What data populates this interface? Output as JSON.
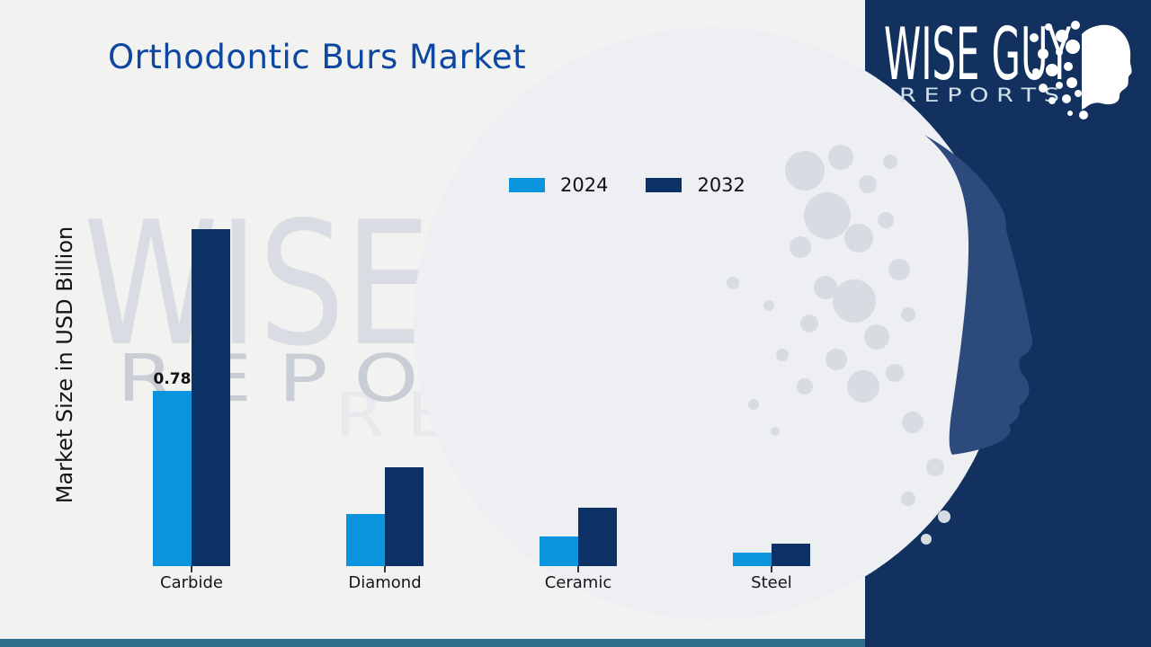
{
  "page": {
    "background": "#f2f2f1",
    "bottom_bar_color": "#2e6d8c"
  },
  "header": {
    "title": "Orthodontic Burs Market",
    "title_color": "#0d47a1"
  },
  "brand": {
    "name": "WISE GUY",
    "reports": "R E P O R T S",
    "panel_color": "#12315f",
    "face_silhouette_color": "#2d4a7c",
    "logo_text_color": "#ffffff",
    "reports_text_color": "#cfe0ea"
  },
  "watermark": {
    "line1": "WISE GUY",
    "line2": "R E P O R T S",
    "line2_faint": "R E P O R T S",
    "color": "#d9dce2"
  },
  "chart_data": {
    "type": "bar",
    "title": "Orthodontic Burs Market",
    "xlabel": "",
    "ylabel": "Market Size in USD Billion",
    "categories": [
      "Carbide",
      "Diamond",
      "Ceramic",
      "Steel"
    ],
    "series": [
      {
        "name": "2024",
        "color": "#0a94dd",
        "values": [
          0.78,
          0.23,
          0.13,
          0.06
        ]
      },
      {
        "name": "2032",
        "color": "#0e3165",
        "values": [
          1.5,
          0.44,
          0.26,
          0.1
        ]
      }
    ],
    "bar_label": {
      "series": "2024",
      "category": "Carbide",
      "text": "0.78"
    },
    "ylim": [
      0,
      1.6
    ],
    "grid": false,
    "legend_position": "top-center"
  }
}
